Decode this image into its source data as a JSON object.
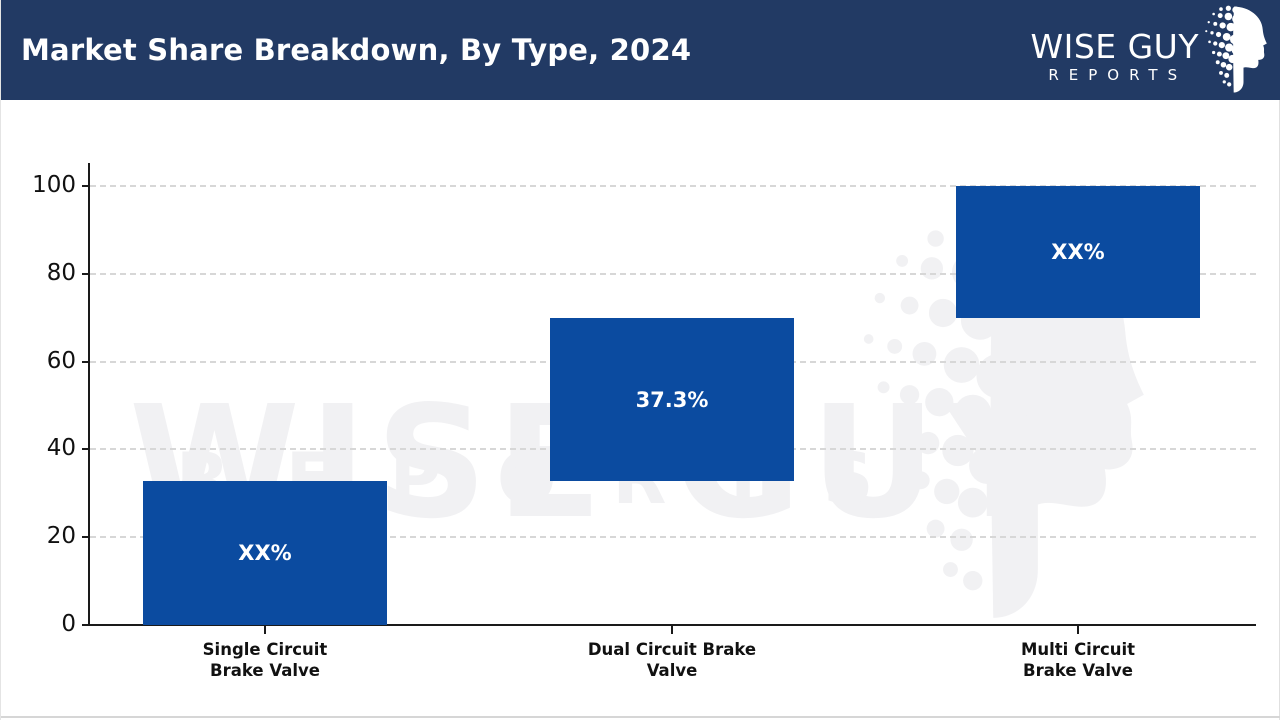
{
  "header": {
    "title": "Market Share Breakdown, By Type, 2024"
  },
  "brand": {
    "name": "WISE GUY",
    "subtitle": "REPORTS"
  },
  "watermark": {
    "line1": "WISE GUY",
    "line2": "REPORTS"
  },
  "chart_data": {
    "type": "bar",
    "variant": "floating-waterfall",
    "title": "Market Share Breakdown, By Type, 2024",
    "xlabel": "",
    "ylabel": "",
    "ylim": [
      0,
      105
    ],
    "yticks": [
      0,
      20,
      40,
      60,
      80,
      100
    ],
    "grid": "horizontal-dashed",
    "legend": "none",
    "bar_color": "#0B4BA0",
    "label_color": "#FFFFFF",
    "categories": [
      "Single Circuit Brake Valve",
      "Dual Circuit Brake Valve",
      "Multi Circuit Brake Valve"
    ],
    "bars": [
      {
        "category_lines": [
          "Single Circuit",
          "Brake Valve"
        ],
        "start": 0,
        "end": 32.7,
        "label": "XX%"
      },
      {
        "category_lines": [
          "Dual Circuit Brake",
          "Valve"
        ],
        "start": 32.7,
        "end": 70,
        "label": "37.3%"
      },
      {
        "category_lines": [
          "Multi Circuit",
          "Brake Valve"
        ],
        "start": 70,
        "end": 100,
        "label": "XX%"
      }
    ]
  }
}
